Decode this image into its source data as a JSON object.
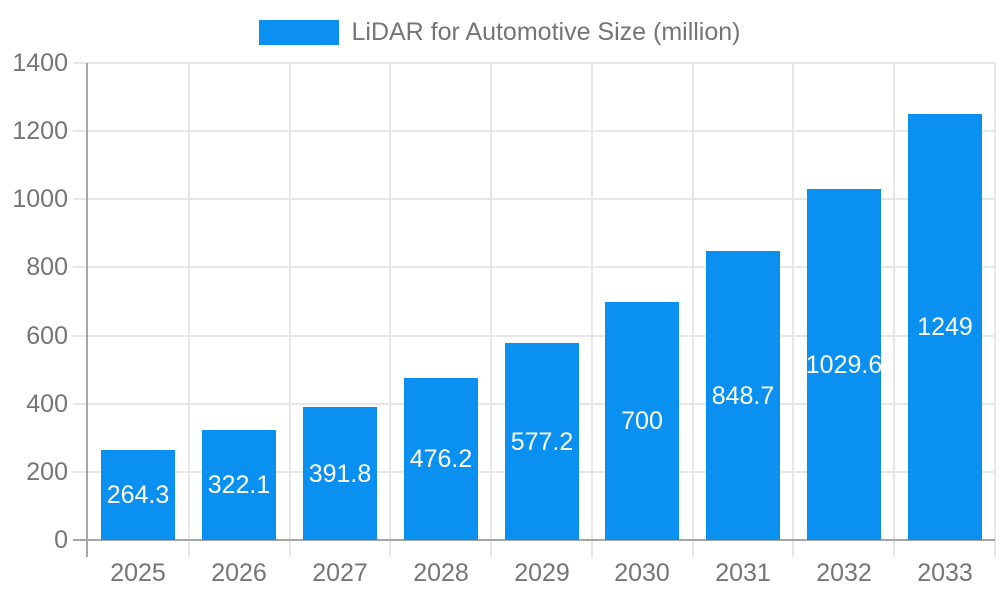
{
  "legend": {
    "label": "LiDAR for Automotive Size (million)"
  },
  "chart_data": {
    "type": "bar",
    "title": "LiDAR for Automotive Size (million)",
    "categories": [
      "2025",
      "2026",
      "2027",
      "2028",
      "2029",
      "2030",
      "2031",
      "2032",
      "2033"
    ],
    "values": [
      264.3,
      322.1,
      391.8,
      476.2,
      577.2,
      700,
      848.7,
      1029.6,
      1249
    ],
    "value_labels": [
      "264.3",
      "322.1",
      "391.8",
      "476.2",
      "577.2",
      "700",
      "848.7",
      "1029.6",
      "1249"
    ],
    "xlabel": "",
    "ylabel": "",
    "ylim": [
      0,
      1400
    ],
    "yticks": [
      0,
      200,
      400,
      600,
      800,
      1000,
      1200,
      1400
    ],
    "grid": true,
    "legend_position": "top",
    "bar_label_position": "center-inside",
    "colors": {
      "bar": "#0a90f0",
      "bar_label": "#ffffff",
      "axis": "#a6a6a6",
      "grid": "#e7e7e7",
      "tick_label": "#757575",
      "background": "#ffffff"
    }
  }
}
